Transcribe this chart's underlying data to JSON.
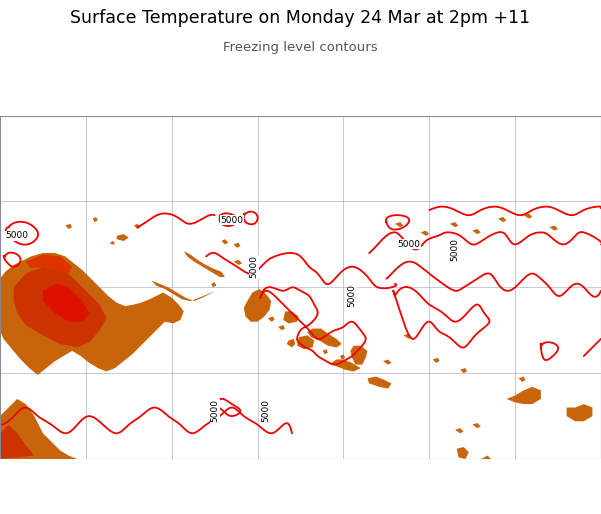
{
  "title": "Surface Temperature on Monday 24 Mar at 2pm +11",
  "subtitle": "Freezing level contours",
  "title_fontsize": 12.5,
  "subtitle_fontsize": 9.5,
  "fig_width": 6.01,
  "fig_height": 5.14,
  "dpi": 100,
  "ocean_color": "#ccd8ea",
  "land_base_color": "#c8650a",
  "land_highlight_color": "#cc3300",
  "land_peak_color": "#dd1100",
  "contour_color": "#ee0000",
  "grid_color": "#aab4cc",
  "header_bg": "#ffffff",
  "border_color": "#888899",
  "map_xlim": [
    140.0,
    175.0
  ],
  "map_ylim": [
    -15.0,
    5.0
  ],
  "grid_lons": [
    140,
    145,
    150,
    155,
    160,
    165,
    170,
    175
  ],
  "grid_lats": [
    -15,
    -10,
    -5,
    0,
    5
  ],
  "contour_lw": 1.3,
  "label_fontsize": 6.5
}
